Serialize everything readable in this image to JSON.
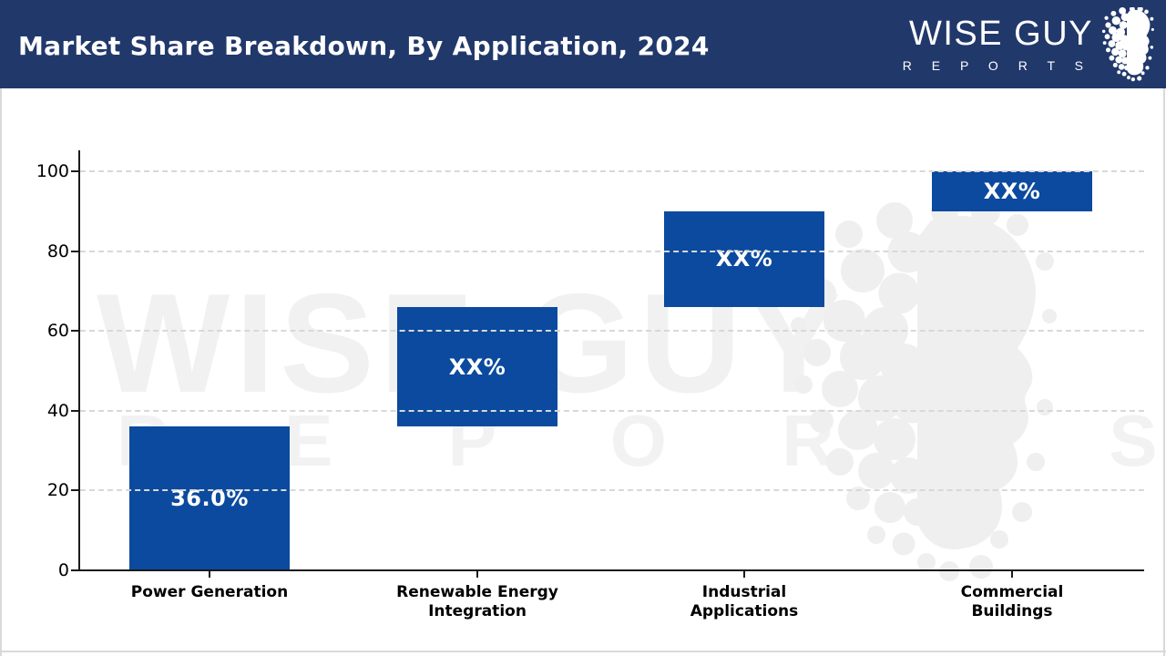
{
  "header": {
    "title": "Market Share Breakdown, By Application, 2024",
    "bg_color": "#21386b",
    "logo": {
      "line1": "WISE GUY",
      "line2": "R E P O R T S"
    }
  },
  "watermark": {
    "line1": "WISE GUY",
    "line2": "R E P O R T S"
  },
  "chart_data": {
    "type": "bar",
    "subtype": "waterfall-floating-segments",
    "title": "Market Share Breakdown, By Application, 2024",
    "categories": [
      "Power Generation",
      "Renewable Energy\nIntegration",
      "Industrial\nApplications",
      "Commercial\nBuildings"
    ],
    "segments": [
      {
        "category": "Power Generation",
        "start": 0,
        "end": 36,
        "label": "36.0%"
      },
      {
        "category": "Renewable Energy Integration",
        "start": 36,
        "end": 66,
        "label": "XX%"
      },
      {
        "category": "Industrial Applications",
        "start": 66,
        "end": 90,
        "label": "XX%"
      },
      {
        "category": "Commercial Buildings",
        "start": 90,
        "end": 100,
        "label": "XX%"
      }
    ],
    "values_by_segment_height": [
      36,
      30,
      24,
      10
    ],
    "ylim": [
      0,
      100
    ],
    "yticks": [
      0,
      20,
      40,
      60,
      80,
      100
    ],
    "grid": "horizontal-dashed",
    "legend": "none",
    "bar_color": "#0b4a9e",
    "bar_label_color": "#ffffff",
    "axis_color": "#1a1a1a",
    "grid_color": "#d8d8d8",
    "tick_label_color": "#000000"
  }
}
